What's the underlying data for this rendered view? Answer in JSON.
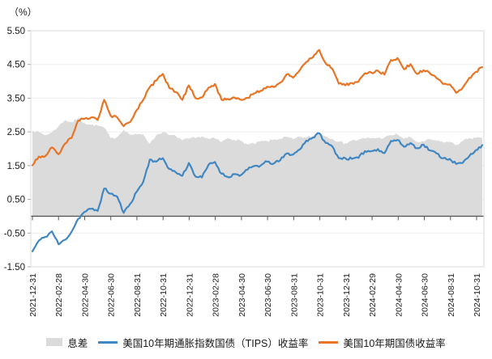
{
  "figure": {
    "unit_label": "（%）"
  },
  "colors": {
    "background": "#ffffff",
    "spread_fill": "#dbdbdb",
    "tips_line": "#4187c2",
    "nominal_line": "#e87424",
    "grid": "#ececec",
    "plot_border": "#d9d9d9",
    "zero_axis": "#595959",
    "y_axis": "#a6a6a6",
    "text": "#1a1a1a"
  },
  "legend": [
    {
      "label": "息差",
      "swatch": "area-gray"
    },
    {
      "label": "美国10年期通胀指数国债（TIPS）收益率",
      "swatch": "line-blue"
    },
    {
      "label": "美国10年期国债收益率",
      "swatch": "line-orange"
    }
  ],
  "chart_data": {
    "type": "line+area",
    "title": "",
    "xlabel": "",
    "ylabel": "（%）",
    "ylim": [
      -1.5,
      5.5
    ],
    "ytick_interval": 1.0,
    "yticks": [
      "5.50",
      "4.50",
      "3.50",
      "2.50",
      "1.50",
      "0.50",
      "-0.50",
      "-1.50"
    ],
    "grid": "horizontal-light",
    "legend_position": "bottom",
    "xticklabels": [
      "2021-12-31",
      "2022-02-28",
      "2022-04-30",
      "2022-06-30",
      "2022-08-31",
      "2022-10-31",
      "2022-12-31",
      "2023-02-28",
      "2023-04-30",
      "2023-06-30",
      "2023-08-31",
      "2023-10-31",
      "2023-12-31",
      "2024-02-29",
      "2024-04-30",
      "2024-06-30",
      "2024-08-31",
      "2024-10-31"
    ],
    "x_dates": [
      "2021-12-31",
      "2022-01-15",
      "2022-01-31",
      "2022-02-15",
      "2022-02-28",
      "2022-03-15",
      "2022-03-31",
      "2022-04-15",
      "2022-04-30",
      "2022-05-15",
      "2022-05-31",
      "2022-06-15",
      "2022-06-30",
      "2022-07-15",
      "2022-07-31",
      "2022-08-15",
      "2022-08-31",
      "2022-09-15",
      "2022-09-30",
      "2022-10-15",
      "2022-10-31",
      "2022-11-15",
      "2022-11-30",
      "2022-12-15",
      "2022-12-31",
      "2023-01-15",
      "2023-01-31",
      "2023-02-15",
      "2023-02-28",
      "2023-03-15",
      "2023-03-31",
      "2023-04-15",
      "2023-04-30",
      "2023-05-15",
      "2023-05-31",
      "2023-06-15",
      "2023-06-30",
      "2023-07-15",
      "2023-07-31",
      "2023-08-15",
      "2023-08-31",
      "2023-09-15",
      "2023-09-30",
      "2023-10-15",
      "2023-10-31",
      "2023-11-15",
      "2023-11-30",
      "2023-12-15",
      "2023-12-31",
      "2024-01-15",
      "2024-01-31",
      "2024-02-15",
      "2024-02-29",
      "2024-03-15",
      "2024-03-31",
      "2024-04-15",
      "2024-04-30",
      "2024-05-15",
      "2024-05-31",
      "2024-06-15",
      "2024-06-30",
      "2024-07-15",
      "2024-07-31",
      "2024-08-15",
      "2024-08-31",
      "2024-09-15",
      "2024-09-30",
      "2024-10-15",
      "2024-10-31",
      "2024-11-14"
    ],
    "series": [
      {
        "name": "息差",
        "type": "area",
        "color": "#dbdbdb",
        "values": [
          2.55,
          2.49,
          2.4,
          2.49,
          2.67,
          2.85,
          2.78,
          2.91,
          2.76,
          2.71,
          2.69,
          2.63,
          2.31,
          2.35,
          2.57,
          2.42,
          2.42,
          2.43,
          2.15,
          2.4,
          2.5,
          2.4,
          2.38,
          2.25,
          2.3,
          2.32,
          2.37,
          2.29,
          2.31,
          2.2,
          2.32,
          2.27,
          2.23,
          2.13,
          2.15,
          2.22,
          2.22,
          2.27,
          2.3,
          2.35,
          2.28,
          2.35,
          2.33,
          2.38,
          2.47,
          2.36,
          2.3,
          2.21,
          2.16,
          2.25,
          2.26,
          2.31,
          2.32,
          2.32,
          2.33,
          2.4,
          2.43,
          2.3,
          2.34,
          2.2,
          2.21,
          2.28,
          2.23,
          2.2,
          2.21,
          2.11,
          2.23,
          2.32,
          2.32,
          2.31
        ]
      },
      {
        "name": "美国10年期通胀指数国债（TIPS）收益率",
        "type": "line",
        "color": "#4187c2",
        "values": [
          -1.04,
          -0.72,
          -0.61,
          -0.45,
          -0.83,
          -0.7,
          -0.46,
          -0.08,
          0.13,
          0.22,
          0.16,
          0.82,
          0.67,
          0.58,
          0.1,
          0.37,
          0.73,
          1.02,
          1.68,
          1.62,
          1.72,
          1.4,
          1.3,
          1.2,
          1.58,
          1.18,
          1.15,
          1.52,
          1.61,
          1.26,
          1.16,
          1.25,
          1.22,
          1.38,
          1.49,
          1.5,
          1.62,
          1.56,
          1.66,
          1.86,
          1.83,
          1.98,
          2.24,
          2.33,
          2.46,
          2.17,
          2.07,
          1.72,
          1.72,
          1.7,
          1.73,
          1.93,
          1.93,
          1.99,
          1.87,
          2.23,
          2.26,
          2.06,
          2.17,
          2.02,
          2.12,
          1.95,
          1.86,
          1.72,
          1.7,
          1.55,
          1.58,
          1.78,
          1.96,
          2.11
        ]
      },
      {
        "name": "美国10年期国债收益率",
        "type": "line",
        "color": "#e87424",
        "values": [
          1.51,
          1.77,
          1.79,
          2.04,
          1.84,
          2.15,
          2.32,
          2.83,
          2.89,
          2.93,
          2.85,
          3.45,
          2.98,
          2.93,
          2.67,
          2.79,
          3.15,
          3.45,
          3.83,
          4.02,
          4.22,
          3.8,
          3.68,
          3.45,
          3.88,
          3.5,
          3.52,
          3.81,
          3.92,
          3.46,
          3.48,
          3.52,
          3.45,
          3.51,
          3.64,
          3.72,
          3.84,
          3.83,
          3.96,
          4.21,
          4.11,
          4.33,
          4.57,
          4.71,
          4.93,
          4.53,
          4.37,
          3.93,
          3.88,
          3.95,
          3.99,
          4.24,
          4.25,
          4.31,
          4.2,
          4.63,
          4.69,
          4.36,
          4.51,
          4.22,
          4.33,
          4.23,
          4.09,
          3.92,
          3.91,
          3.66,
          3.81,
          4.1,
          4.28,
          4.42
        ]
      }
    ]
  }
}
